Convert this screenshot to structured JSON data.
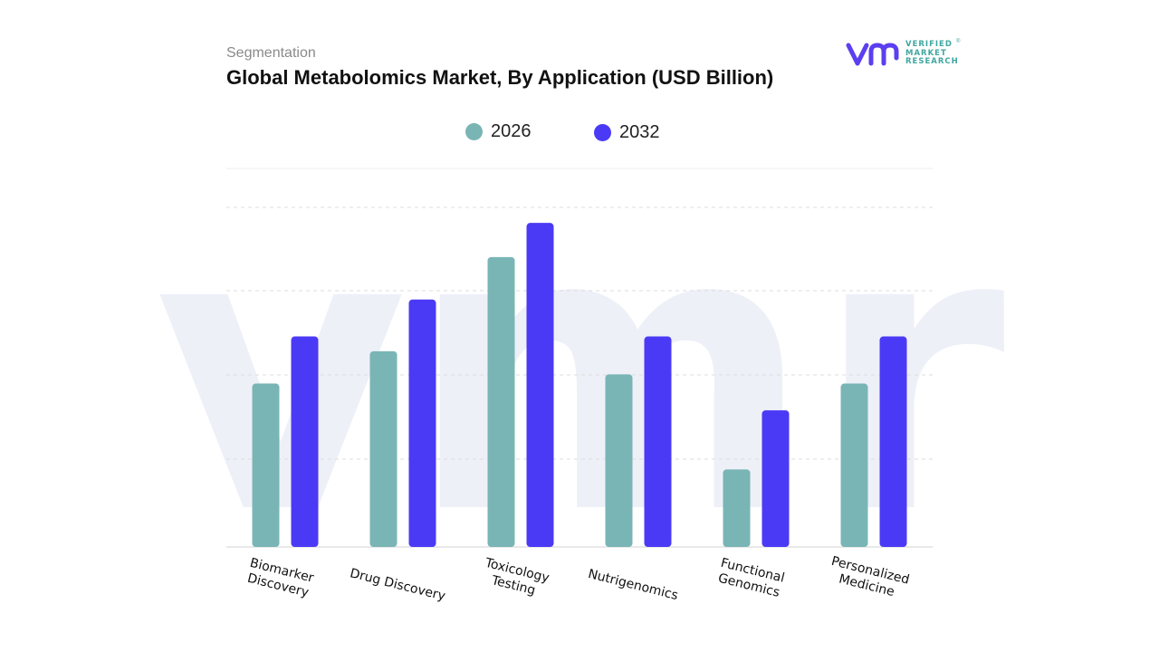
{
  "header": {
    "subtitle": "Segmentation",
    "title": "Global Metabolomics Market, By Application (USD Billion)"
  },
  "logo": {
    "lines": [
      "VERIFIED",
      "MARKET",
      "RESEARCH"
    ],
    "registered": "®",
    "colors": {
      "mark": "#5b3ff0",
      "text": "#3fa6a0"
    }
  },
  "legend": [
    {
      "label": "2026",
      "color": "#7ab5b6"
    },
    {
      "label": "2032",
      "color": "#4b3af5"
    }
  ],
  "chart_data": {
    "type": "bar",
    "title": "Global Metabolomics Market, By Application (USD Billion)",
    "xlabel": "",
    "ylabel": "",
    "categories": [
      "Biomarker\nDiscovery",
      "Drug Discovery",
      "Toxicology\nTesting",
      "Nutrigenomics",
      "Functional\nGenomics",
      "Personalized\nMedicine"
    ],
    "series": [
      {
        "name": "2026",
        "color": "#7ab5b6",
        "values": [
          1.77,
          2.12,
          3.14,
          1.87,
          0.84,
          1.77
        ]
      },
      {
        "name": "2032",
        "color": "#4b3af5",
        "values": [
          2.28,
          2.68,
          3.51,
          2.28,
          1.48,
          2.28
        ]
      }
    ],
    "ylim": [
      0,
      4.1
    ],
    "grid": true,
    "legend_position": "top-center",
    "watermark": "vmr"
  }
}
